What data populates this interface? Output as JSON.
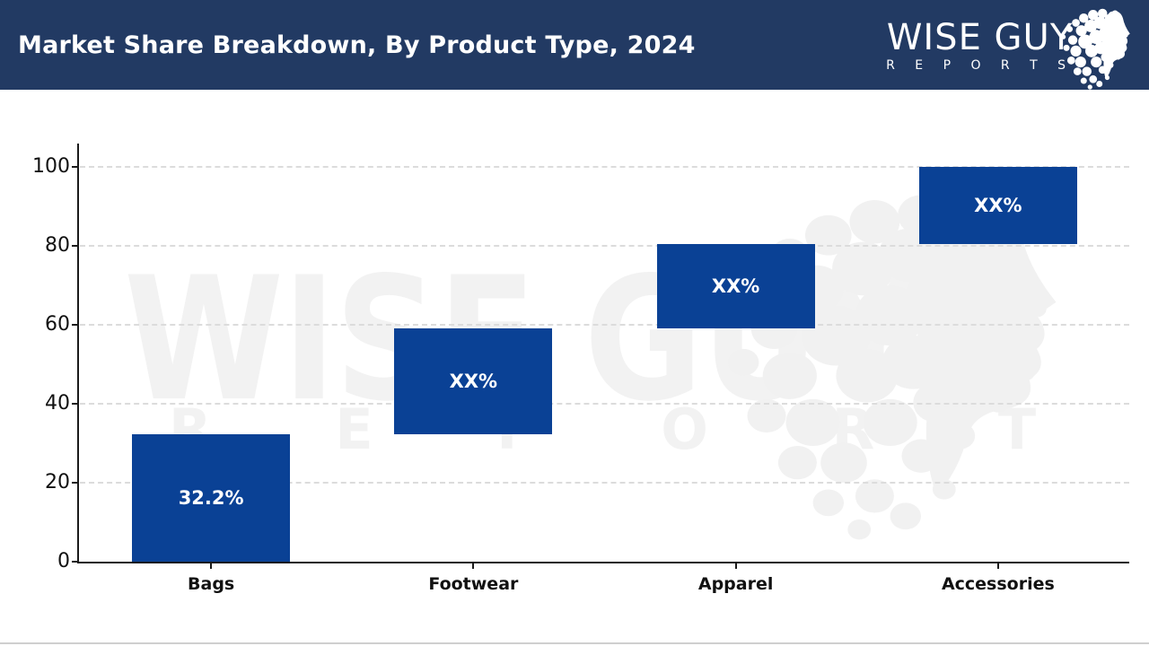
{
  "header": {
    "title": "Market Share Breakdown, By Product Type, 2024",
    "logo": {
      "line1": "WISE GUY",
      "line2": "R E P O R T S"
    }
  },
  "watermark": {
    "line1": "WISE GUY",
    "line2": "R E P O R T S"
  },
  "chart_data": {
    "type": "bar",
    "subtype": "waterfall",
    "title": "Market Share Breakdown, By Product Type, 2024",
    "categories": [
      "Bags",
      "Footwear",
      "Apparel",
      "Accessories"
    ],
    "series": [
      {
        "name": "Market Share",
        "segments": [
          {
            "category": "Bags",
            "start": 0,
            "end": 32.2,
            "label": "32.2%"
          },
          {
            "category": "Footwear",
            "start": 32.2,
            "end": 59,
            "label": "XX%"
          },
          {
            "category": "Apparel",
            "start": 59,
            "end": 80.4,
            "label": "XX%"
          },
          {
            "category": "Accessories",
            "start": 80.4,
            "end": 100,
            "label": "XX%"
          }
        ]
      }
    ],
    "xlabel": "",
    "ylabel": "",
    "ylim": [
      0,
      106
    ],
    "yticks": [
      0,
      20,
      40,
      60,
      80,
      100
    ],
    "grid": "horizontal-dashed",
    "legend": "none",
    "bar_color": "#0a4195",
    "bar_label_color": "#ffffff"
  },
  "colors": {
    "header_bg": "#223a63",
    "bar": "#0a4195",
    "axis": "#1a1a1a",
    "grid": "#dcdcdc",
    "watermark": "#f2f2f2"
  }
}
